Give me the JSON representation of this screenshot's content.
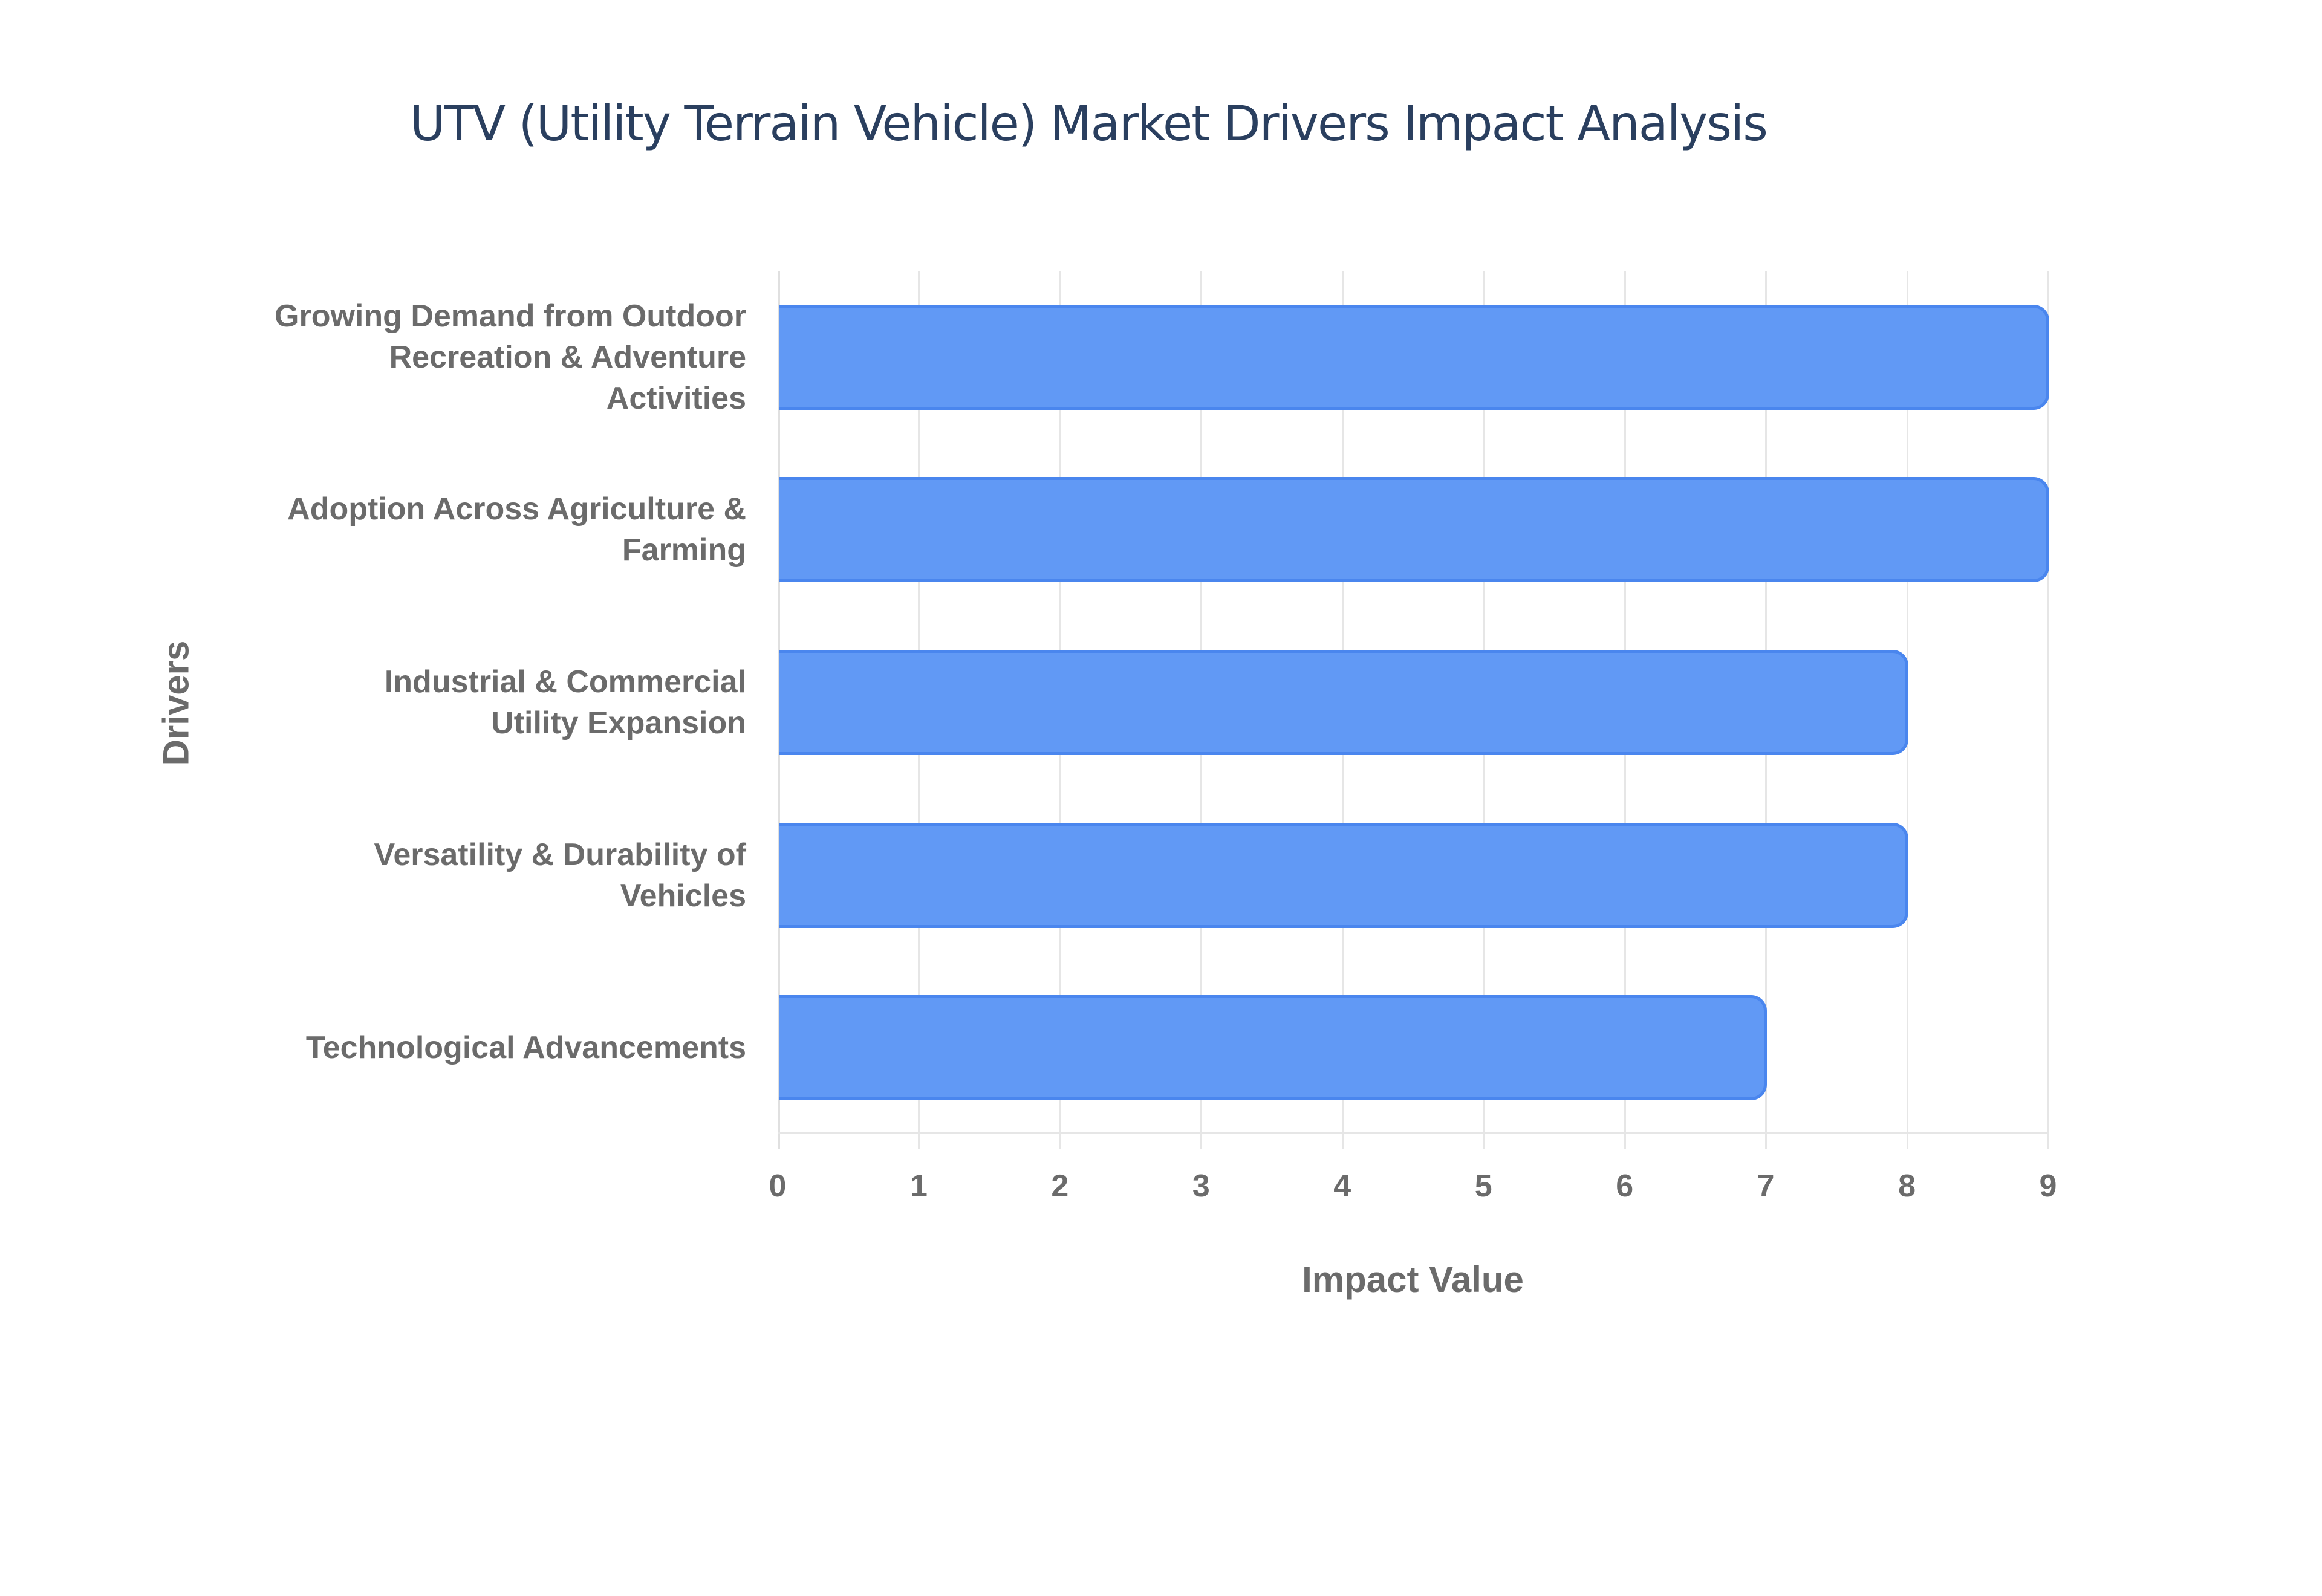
{
  "chart_data": {
    "type": "bar",
    "orientation": "horizontal",
    "title": "UTV (Utility Terrain Vehicle) Market Drivers Impact Analysis",
    "xlabel": "Impact Value",
    "ylabel": "Drivers",
    "categories": [
      "Growing Demand from Outdoor Recreation & Adventure Activities",
      "Adoption Across Agriculture & Farming",
      "Industrial & Commercial Utility Expansion",
      "Versatility & Durability of Vehicles",
      "Technological Advancements"
    ],
    "category_lines": [
      [
        "Growing Demand from Outdoor",
        "Recreation & Adventure",
        "Activities"
      ],
      [
        "Adoption Across Agriculture &",
        "Farming"
      ],
      [
        "Industrial & Commercial",
        "Utility Expansion"
      ],
      [
        "Versatility & Durability of",
        "Vehicles"
      ],
      [
        "Technological Advancements"
      ]
    ],
    "values": [
      9,
      9,
      8,
      8,
      7
    ],
    "xlim": [
      0,
      9
    ],
    "xticks": [
      "0",
      "1",
      "2",
      "3",
      "4",
      "5",
      "6",
      "7",
      "8",
      "9"
    ],
    "grid": true,
    "bar_color": "#6199f5",
    "bar_border_color": "#4a86ee",
    "legend": null
  }
}
